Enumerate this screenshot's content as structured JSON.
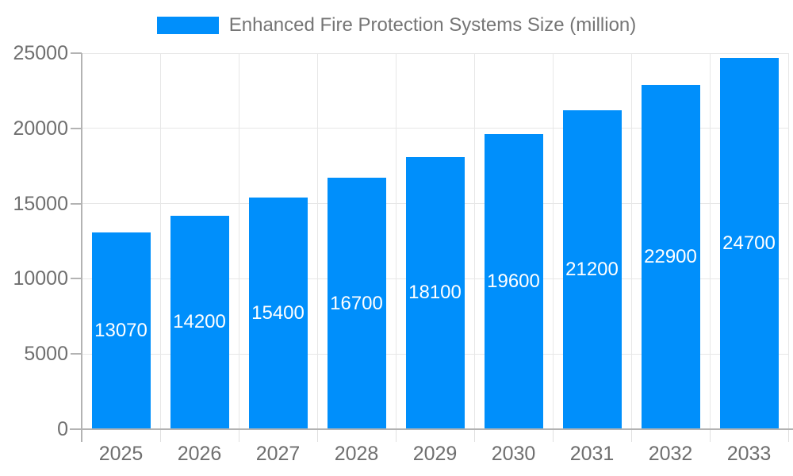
{
  "legend": {
    "label": "Enhanced Fire Protection Systems Size (million)"
  },
  "colors": {
    "bar": "#008FFB",
    "background": "#ffffff",
    "grid": "#e7e7e7",
    "axis_line": "#b3b3b3",
    "axis_text": "#6f6f6f",
    "legend_text": "#757575",
    "data_label_text": "#ffffff"
  },
  "chart_data": {
    "type": "bar",
    "title": "Enhanced Fire Protection Systems Size (million)",
    "series": [
      {
        "name": "Enhanced Fire Protection Systems Size (million)",
        "values": [
          13070,
          14200,
          15400,
          16700,
          18100,
          19600,
          21200,
          22900,
          24700
        ]
      }
    ],
    "categories": [
      "2025",
      "2026",
      "2027",
      "2028",
      "2029",
      "2030",
      "2031",
      "2032",
      "2033"
    ],
    "xlabel": "",
    "ylabel": "",
    "ylim": [
      0,
      25000
    ],
    "ytick_step": 5000,
    "ytick_labels": [
      "0",
      "5000",
      "10000",
      "15000",
      "20000",
      "25000"
    ],
    "grid": true,
    "legend_position": "top",
    "data_labels": {
      "visible": true,
      "position": "center",
      "labels": [
        "13070",
        "14200",
        "15400",
        "16700",
        "18100",
        "19600",
        "21200",
        "22900",
        "24700"
      ]
    }
  }
}
